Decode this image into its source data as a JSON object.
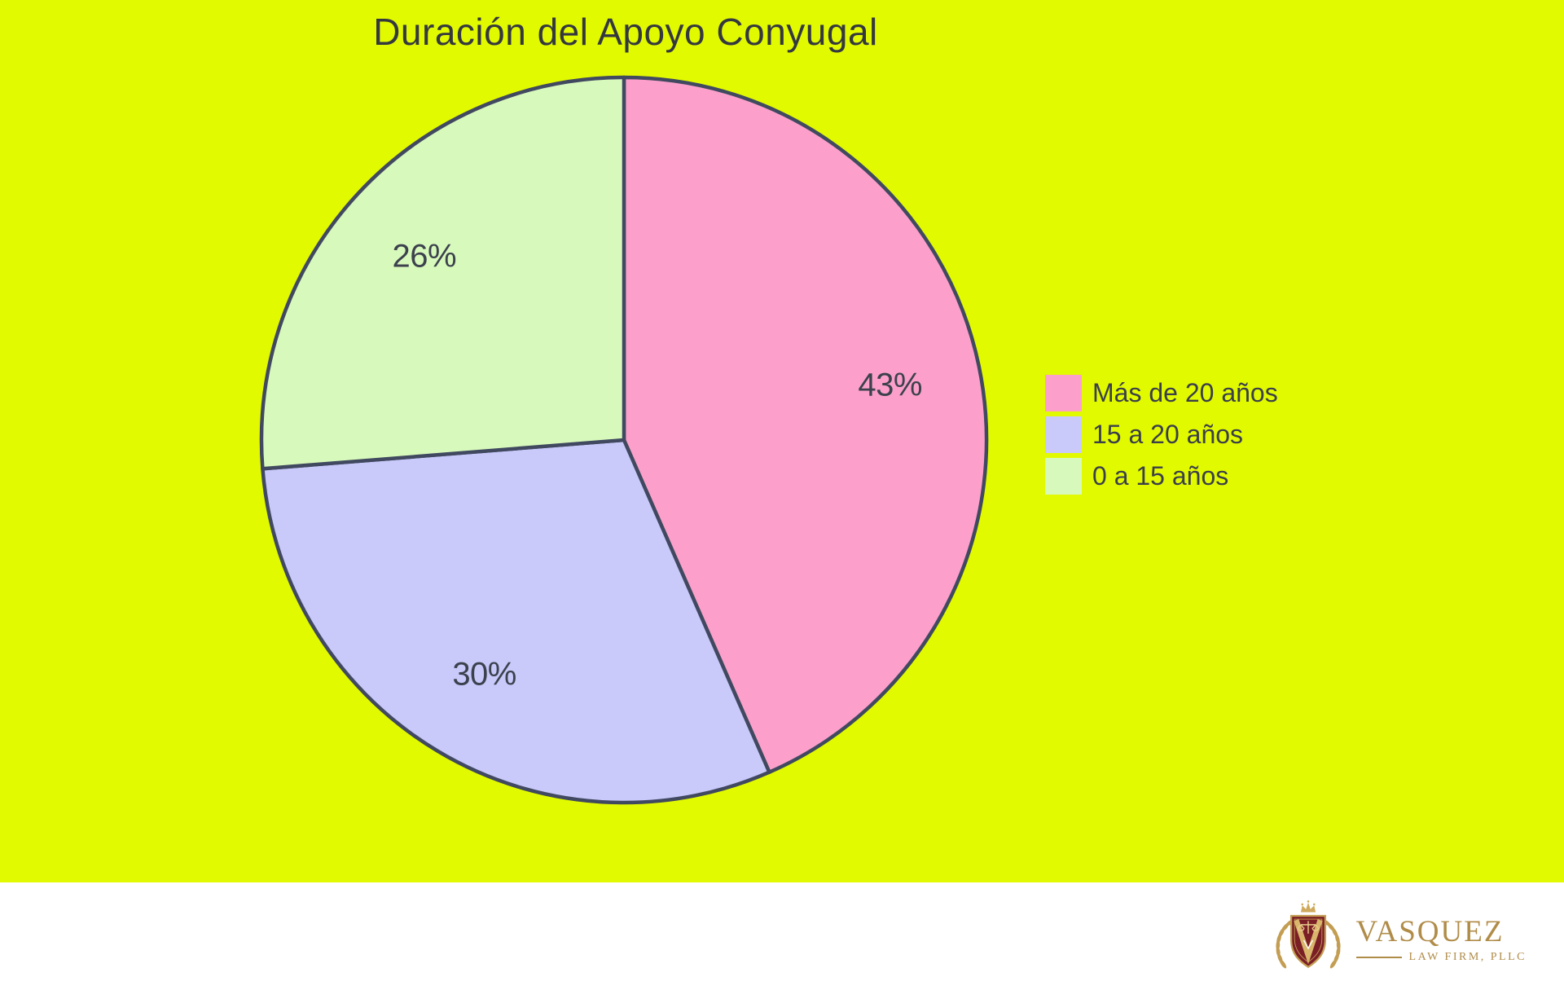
{
  "chart_data": {
    "type": "pie",
    "title": "Duración del Apoyo Conyugal",
    "categories": [
      "Más de 20 años",
      "15 a 20 años",
      "0 a 15 años"
    ],
    "values": [
      43,
      30,
      26
    ],
    "unit": "%",
    "slices": [
      {
        "label": "Más de 20 años",
        "value": 43,
        "display": "43%",
        "color": "#fca0cb"
      },
      {
        "label": "15 a 20 años",
        "value": 30,
        "display": "30%",
        "color": "#c9c9fa"
      },
      {
        "label": "0 a 15 años",
        "value": 26,
        "display": "26%",
        "color": "#d8f9bc"
      }
    ],
    "start_angle_deg": 0,
    "direction": "clockwise",
    "legend_position": "right",
    "background_color": "#e2fa00",
    "stroke_color": "#414960",
    "label_color": "#3c414d",
    "title_color": "#34383f"
  },
  "branding": {
    "name": "VASQUEZ",
    "subtitle": "LAW FIRM, PLLC",
    "gold": "#b08c49",
    "shield_red": "#7b1f27"
  }
}
